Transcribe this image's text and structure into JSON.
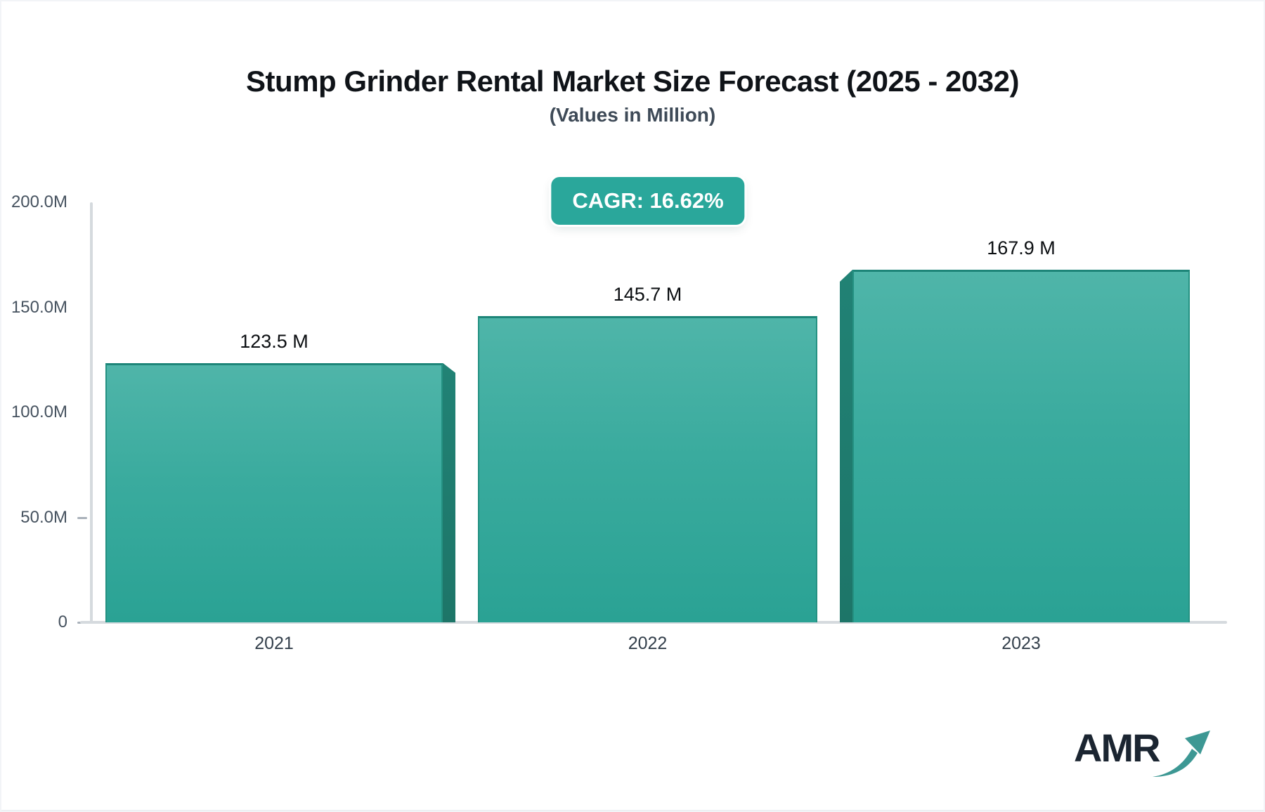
{
  "header": {
    "title": "Stump Grinder Rental Market Size Forecast (2025 - 2032)",
    "subtitle": "(Values in Million)",
    "cagr_label": "CAGR: 16.62%"
  },
  "chart_data": {
    "type": "bar",
    "title": "Stump Grinder Rental Market Size Forecast (2025 - 2032)",
    "subtitle": "(Values in Million)",
    "unit": "Million",
    "cagr_percent": 16.62,
    "categories": [
      "2021",
      "2022",
      "2023"
    ],
    "values": [
      123.5,
      145.7,
      167.9
    ],
    "value_labels": [
      "123.5 M",
      "145.7 M",
      "167.9 M"
    ],
    "ylim": [
      0,
      200
    ],
    "yticks": [
      {
        "value": 200,
        "label": "200.0M",
        "dash": false
      },
      {
        "value": 150,
        "label": "150.0M",
        "dash": false
      },
      {
        "value": 100,
        "label": "100.0M",
        "dash": false
      },
      {
        "value": 50,
        "label": "50.0M",
        "dash": true
      },
      {
        "value": 0,
        "label": "0",
        "dash": true
      }
    ],
    "grid": "off",
    "legend": "none"
  },
  "colors": {
    "accent_teal": "#2aa79b",
    "bar_top": "#4fb5a9",
    "bar_bottom": "#2aa294",
    "bar_side": "#1f7c70",
    "bar_border": "#1d8578",
    "axis": "#d5dade",
    "title_text": "#0f1318",
    "label_text": "#46525f",
    "logo_text": "#1b2531",
    "logo_arrow": "#3d9894"
  },
  "logo": {
    "text": "AMR"
  }
}
